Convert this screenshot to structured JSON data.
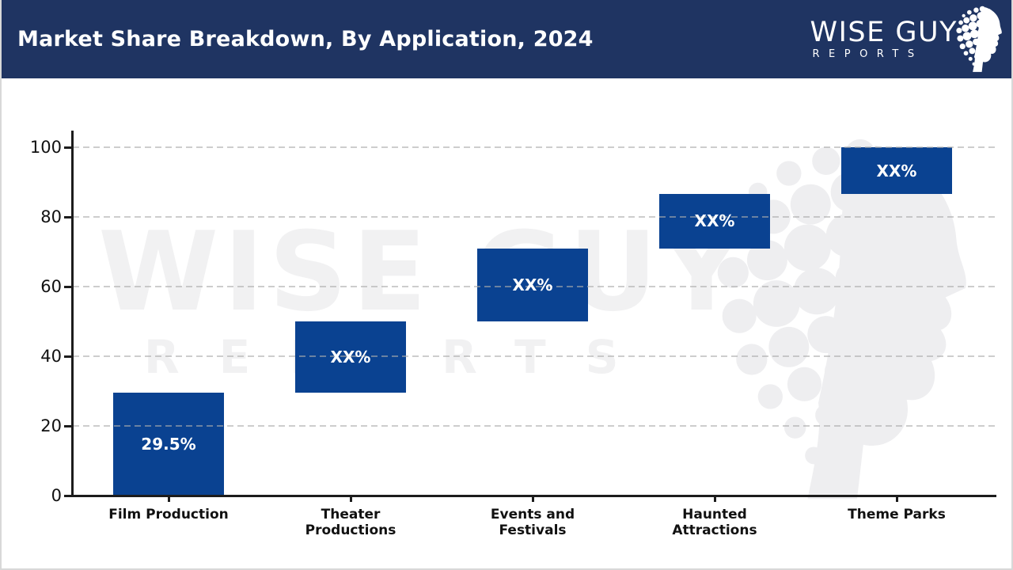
{
  "header": {
    "title": "Market Share Breakdown, By Application, 2024",
    "logo": {
      "line1": "WISE GUY",
      "line2": "REPORTS"
    }
  },
  "watermark": {
    "line1": "WISE GUY",
    "line2": "REPORTS"
  },
  "chart_data": {
    "type": "bar",
    "subtype": "floating-waterfall",
    "title": "Market Share Breakdown, By Application, 2024",
    "categories": [
      "Film Production",
      "Theater\nProductions",
      "Events and\nFestivals",
      "Haunted\nAttractions",
      "Theme Parks"
    ],
    "segments": [
      {
        "category": "Film Production",
        "start": 0,
        "end": 29.5,
        "label": "29.5%"
      },
      {
        "category": "Theater Productions",
        "start": 29.5,
        "end": 50,
        "label": "XX%"
      },
      {
        "category": "Events and Festivals",
        "start": 50,
        "end": 71,
        "label": "XX%"
      },
      {
        "category": "Haunted Attractions",
        "start": 71,
        "end": 86.5,
        "label": "XX%"
      },
      {
        "category": "Theme Parks",
        "start": 86.5,
        "end": 100,
        "label": "XX%"
      }
    ],
    "yticks": [
      0,
      20,
      40,
      60,
      80,
      100
    ],
    "ylim": [
      0,
      104.8
    ],
    "xlabel": "",
    "ylabel": "",
    "grid": "horizontal-dashed",
    "legend": "none",
    "bar_color": "#0a4291"
  },
  "colors": {
    "header_bg": "#1f3462",
    "bar": "#0a4291",
    "axis": "#1c1c1c",
    "grid": "#d4d4d4",
    "watermark": "#f1f1f2",
    "bar_label_text": "#ffffff"
  }
}
